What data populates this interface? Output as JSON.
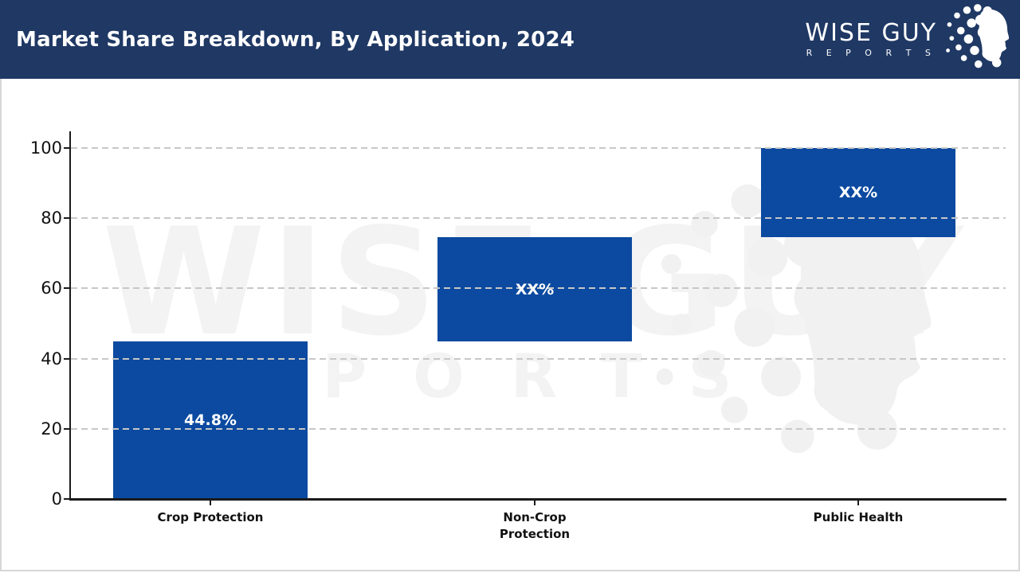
{
  "header": {
    "title": "Market Share Breakdown, By Application, 2024",
    "logo": {
      "name_top": "WISE GUY",
      "name_bottom": "R E P O R T S"
    }
  },
  "watermark": {
    "text_top": "WISE GUY",
    "text_bottom": "REPORTS"
  },
  "colors": {
    "header_bg": "#1f3864",
    "bar": "#0b4aa0",
    "bar_label": "#ffffff",
    "grid": "#c7c7c7",
    "axis": "#1a1a1a",
    "watermark": "#f3f3f3",
    "frame_edge": "#d6d6d6"
  },
  "chart_data": {
    "type": "bar",
    "subtype": "floating-waterfall",
    "title": "Market Share Breakdown, By Application, 2024",
    "categories": [
      "Crop Protection",
      "Non-Crop\nProtection",
      "Public Health"
    ],
    "segments": [
      {
        "category": "Crop Protection",
        "start": 0,
        "end": 44.8,
        "label": "44.8%"
      },
      {
        "category": "Non-Crop Protection",
        "start": 44.8,
        "end": 74.6,
        "label": "XX%"
      },
      {
        "category": "Public Health",
        "start": 74.6,
        "end": 100,
        "label": "XX%"
      }
    ],
    "xlabel": "",
    "ylabel": "",
    "ylim": [
      0,
      105
    ],
    "yticks": [
      0,
      20,
      40,
      60,
      80,
      100
    ],
    "grid": "horizontal dashed, drawn above bars",
    "legend": "none"
  }
}
